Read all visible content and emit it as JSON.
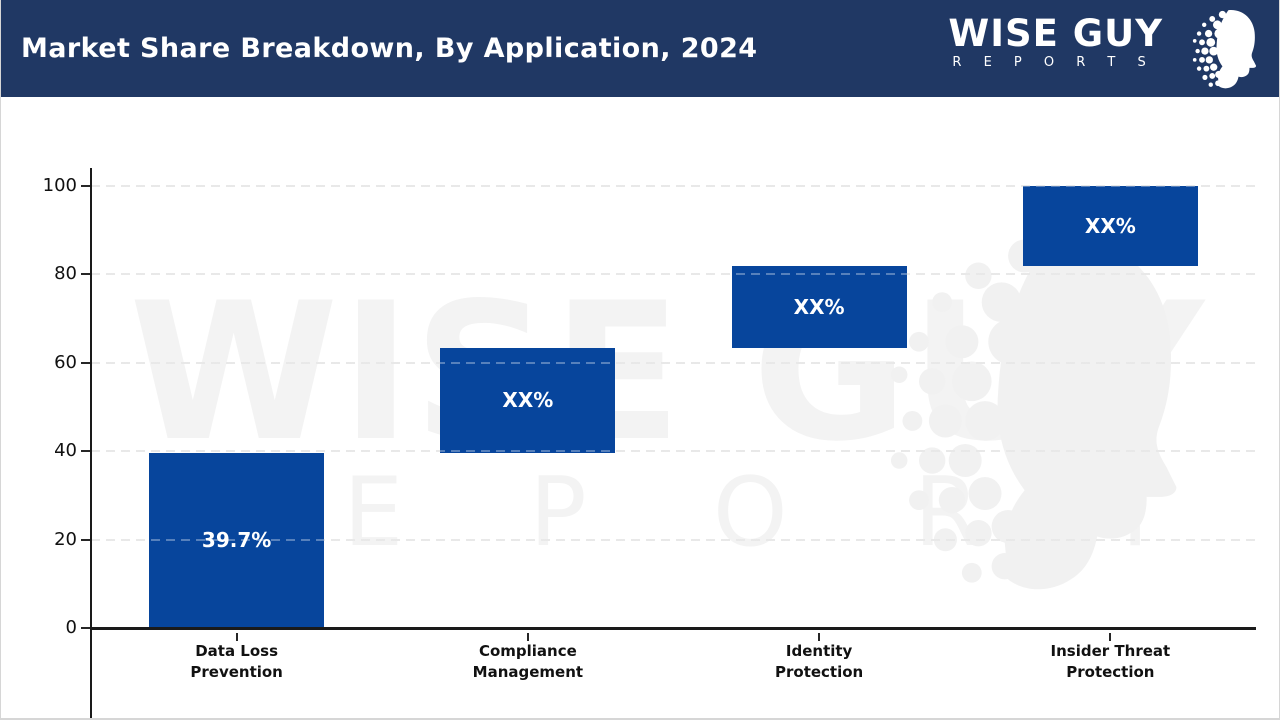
{
  "page": {
    "background": "#ffffff",
    "frame_border": "#d6d6d6"
  },
  "header": {
    "background": "#203864",
    "title": "Market Share Breakdown, By Application, 2024",
    "logo": {
      "brand_line1": "WISE GUY",
      "brand_line2": "R E P O R T S"
    }
  },
  "watermark": {
    "line1": "WISE GUY",
    "line2": "R E P O R T S"
  },
  "chart_data": {
    "type": "bar",
    "variant": "waterfall-breakdown",
    "title": "Market Share Breakdown, By Application, 2024",
    "ylim": [
      0,
      100
    ],
    "y_ticks": [
      0,
      20,
      40,
      60,
      80,
      100
    ],
    "grid": {
      "horizontal": true,
      "style": "dashed",
      "color": "#dedede"
    },
    "legend": "none",
    "bar_color": "#07459c",
    "bar_label_color": "#ffffff",
    "axis_color": "#1a1a1a",
    "categories": [
      {
        "lines": [
          "Data Loss",
          "Prevention"
        ]
      },
      {
        "lines": [
          "Compliance",
          "Management"
        ]
      },
      {
        "lines": [
          "Identity",
          "Protection"
        ]
      },
      {
        "lines": [
          "Insider Threat",
          "Protection"
        ]
      }
    ],
    "segments": [
      {
        "category": "Data Loss Prevention",
        "label": "39.7%",
        "start": 0,
        "end": 39.7
      },
      {
        "category": "Compliance Management",
        "label": "XX%",
        "start": 39.7,
        "end": 63.3
      },
      {
        "category": "Identity Protection",
        "label": "XX%",
        "start": 63.3,
        "end": 81.9
      },
      {
        "category": "Insider Threat Protection",
        "label": "XX%",
        "start": 81.9,
        "end": 100
      }
    ]
  }
}
